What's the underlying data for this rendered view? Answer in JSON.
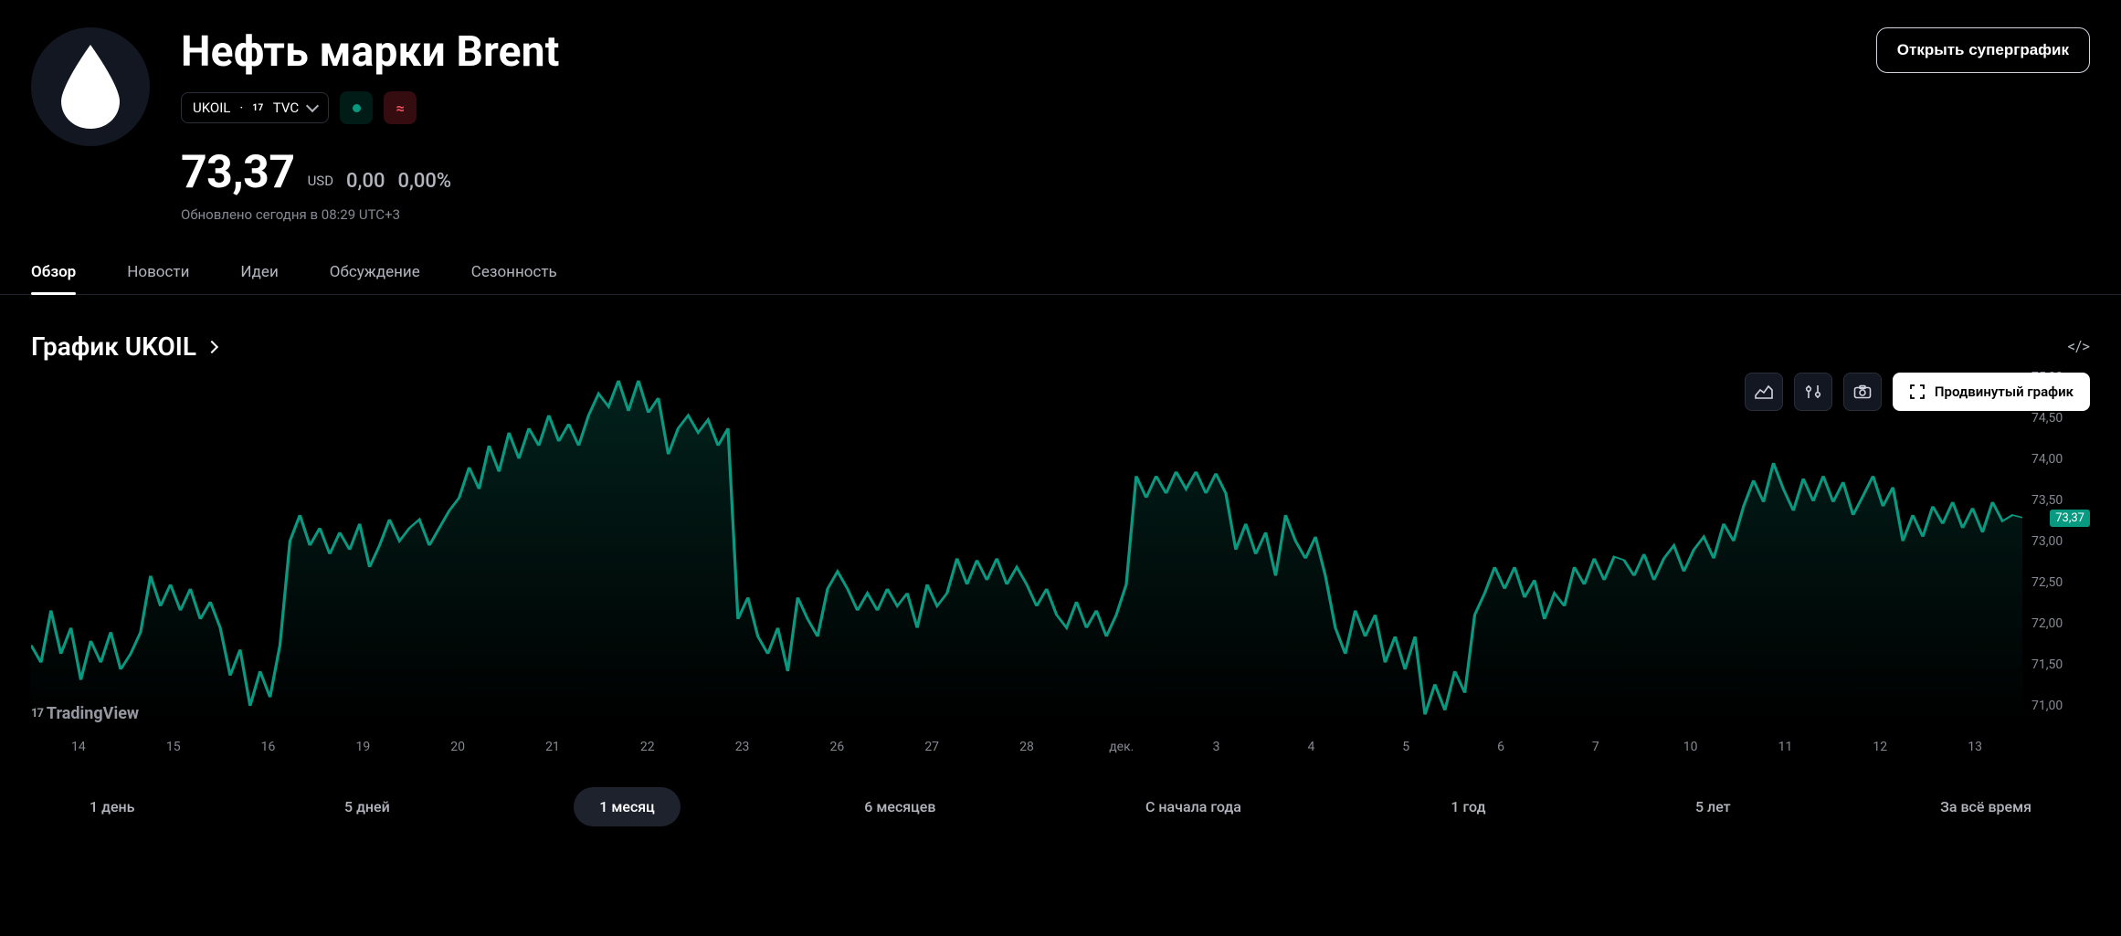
{
  "header": {
    "title": "Нефть марки Brent",
    "symbol": "UKOIL",
    "exchange_prefix": "17",
    "exchange": "TVC",
    "open_super_btn": "Открыть суперграфик"
  },
  "quote": {
    "price": "73,37",
    "currency": "USD",
    "change_abs": "0,00",
    "change_pct": "0,00%",
    "updated": "Обновлено сегодня в 08:29 UTC+3"
  },
  "tabs": [
    {
      "label": "Обзор",
      "active": true
    },
    {
      "label": "Новости",
      "active": false
    },
    {
      "label": "Идеи",
      "active": false
    },
    {
      "label": "Обсуждение",
      "active": false
    },
    {
      "label": "Сезонность",
      "active": false
    }
  ],
  "chart": {
    "title": "График UKOIL",
    "advanced_btn": "Продвинутый график",
    "watermark": "TradingView",
    "line_color": "#089981",
    "fill_top": "rgba(8,153,129,0.22)",
    "fill_bottom": "rgba(8,153,129,0.00)",
    "background": "#000000",
    "y_min": 71.0,
    "y_max": 75.0,
    "y_ticks": [
      "75,00",
      "74,50",
      "74,00",
      "73,50",
      "73,00",
      "72,50",
      "72,00",
      "71,50",
      "71,00"
    ],
    "price_badge": "73,37",
    "x_labels": [
      "14",
      "15",
      "16",
      "19",
      "20",
      "21",
      "22",
      "23",
      "26",
      "27",
      "28",
      "дек.",
      "3",
      "4",
      "5",
      "6",
      "7",
      "10",
      "11",
      "12",
      "13"
    ],
    "series": [
      71.9,
      71.7,
      72.3,
      71.8,
      72.1,
      71.5,
      71.95,
      71.7,
      72.05,
      71.62,
      71.8,
      72.05,
      72.7,
      72.35,
      72.6,
      72.3,
      72.55,
      72.2,
      72.4,
      72.1,
      71.55,
      71.85,
      71.2,
      71.6,
      71.3,
      71.9,
      73.1,
      73.4,
      73.05,
      73.25,
      72.95,
      73.2,
      73.0,
      73.3,
      72.8,
      73.05,
      73.35,
      73.1,
      73.25,
      73.35,
      73.05,
      73.25,
      73.45,
      73.6,
      73.95,
      73.7,
      74.2,
      73.9,
      74.35,
      74.05,
      74.4,
      74.2,
      74.55,
      74.25,
      74.45,
      74.2,
      74.55,
      74.8,
      74.65,
      74.95,
      74.6,
      74.95,
      74.58,
      74.75,
      74.1,
      74.4,
      74.55,
      74.35,
      74.5,
      74.2,
      74.4,
      72.2,
      72.45,
      72.0,
      71.8,
      72.1,
      71.6,
      72.45,
      72.2,
      72.0,
      72.55,
      72.75,
      72.55,
      72.3,
      72.5,
      72.3,
      72.55,
      72.35,
      72.5,
      72.1,
      72.6,
      72.35,
      72.5,
      72.9,
      72.6,
      72.88,
      72.65,
      72.9,
      72.6,
      72.8,
      72.6,
      72.35,
      72.55,
      72.25,
      72.1,
      72.4,
      72.1,
      72.3,
      72.0,
      72.25,
      72.6,
      73.85,
      73.6,
      73.85,
      73.65,
      73.9,
      73.7,
      73.9,
      73.65,
      73.88,
      73.65,
      73.0,
      73.3,
      72.95,
      73.2,
      72.7,
      73.4,
      73.1,
      72.9,
      73.15,
      72.7,
      72.1,
      71.8,
      72.3,
      72.0,
      72.25,
      71.7,
      72.0,
      71.62,
      72.0,
      71.1,
      71.45,
      71.15,
      71.6,
      71.35,
      72.25,
      72.5,
      72.8,
      72.55,
      72.8,
      72.45,
      72.65,
      72.2,
      72.5,
      72.35,
      72.8,
      72.6,
      72.9,
      72.65,
      72.92,
      72.88,
      72.7,
      72.95,
      72.65,
      72.9,
      73.05,
      72.75,
      73.0,
      73.15,
      72.9,
      73.3,
      73.1,
      73.5,
      73.8,
      73.55,
      74.0,
      73.7,
      73.45,
      73.82,
      73.56,
      73.85,
      73.55,
      73.78,
      73.4,
      73.62,
      73.85,
      73.5,
      73.72,
      73.1,
      73.4,
      73.15,
      73.5,
      73.3,
      73.55,
      73.25,
      73.48,
      73.2,
      73.55,
      73.33,
      73.4,
      73.37
    ]
  },
  "ranges": [
    {
      "label": "1 день",
      "active": false
    },
    {
      "label": "5 дней",
      "active": false
    },
    {
      "label": "1 месяц",
      "active": true
    },
    {
      "label": "6 месяцев",
      "active": false
    },
    {
      "label": "С начала года",
      "active": false
    },
    {
      "label": "1 год",
      "active": false
    },
    {
      "label": "5 лет",
      "active": false
    },
    {
      "label": "За всё время",
      "active": false
    }
  ]
}
